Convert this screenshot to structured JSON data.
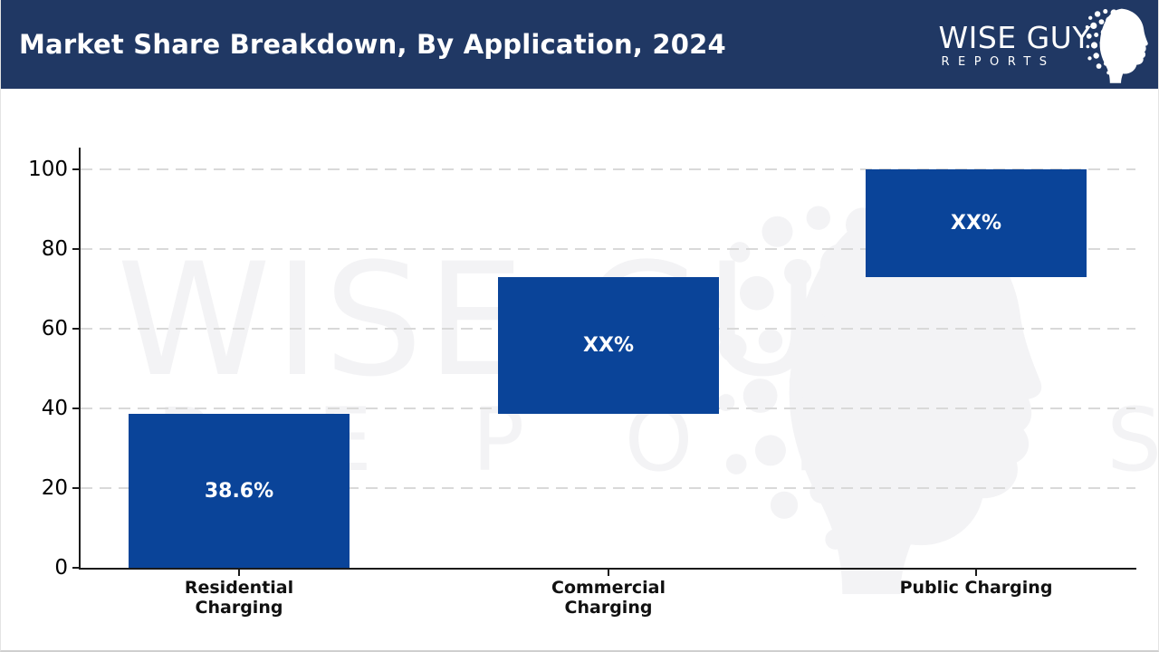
{
  "header": {
    "title": "Market Share Breakdown, By Application, 2024",
    "logo": {
      "wordmark": "WISE GUY",
      "subtext": "REPORTS"
    }
  },
  "watermark": {
    "line1": "WISE GUY",
    "line2": "R E P O R T S"
  },
  "colors": {
    "header_bg": "#203864",
    "bar": "#0a4499",
    "grid": "#d9d9d9",
    "axis": "#1a1a1a",
    "bar_label": "#ffffff",
    "watermark": "#f3f3f5"
  },
  "chart_data": {
    "type": "bar",
    "subtype": "waterfall",
    "title": "Market Share Breakdown, By Application, 2024",
    "units": "%",
    "categories": [
      "Residential Charging",
      "Commercial Charging",
      "Public Charging"
    ],
    "category_label_lines": [
      [
        "Residential",
        "Charging"
      ],
      [
        "Commercial",
        "Charging"
      ],
      [
        "Public Charging"
      ]
    ],
    "segments": [
      {
        "category": "Residential Charging",
        "start": 0,
        "end": 38.6,
        "value": 38.6,
        "label": "38.6%"
      },
      {
        "category": "Commercial Charging",
        "start": 38.6,
        "end": 73,
        "value": 34.4,
        "label": "XX%"
      },
      {
        "category": "Public Charging",
        "start": 73,
        "end": 100,
        "value": 27,
        "label": "XX%"
      }
    ],
    "xlabel": "",
    "ylabel": "",
    "yticks": [
      0,
      20,
      40,
      60,
      80,
      100
    ],
    "ylim": [
      0,
      105.5
    ],
    "grid": "horizontal-dashed",
    "legend": "none"
  }
}
